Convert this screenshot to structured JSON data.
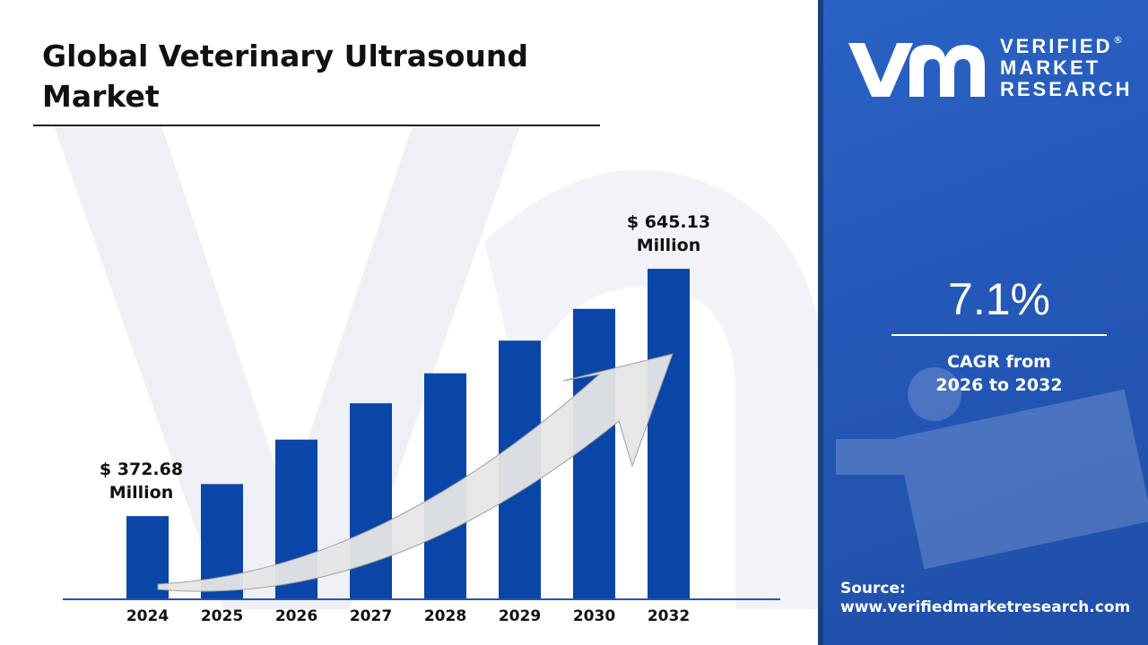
{
  "header": {
    "title": "Global Veterinary Ultrasound Market"
  },
  "brand": {
    "logo_mark": "vmr",
    "logo_text": [
      "VERIFIED",
      "MARKET",
      "RESEARCH"
    ],
    "registered": "®"
  },
  "side_panel": {
    "cagr_value": "7.1%",
    "cagr_label_line1": "CAGR from",
    "cagr_label_line2": "2026 to 2032",
    "source_label": "Source:",
    "source_url": "www.verifiedmarketresearch.com"
  },
  "colors": {
    "bar": "#0a45a8",
    "panel": "#2458b8",
    "arrow": "#e6e6e6"
  },
  "chart_data": {
    "type": "bar",
    "title": "Global Veterinary Ultrasound Market",
    "categories": [
      "2024",
      "2025",
      "2026",
      "2027",
      "2028",
      "2029",
      "2030",
      "2032"
    ],
    "values": [
      372.68,
      408,
      457,
      497,
      530,
      566,
      601,
      645.13
    ],
    "unit": "USD Million",
    "ylim": [
      282,
      660
    ],
    "grid": false,
    "legend": "none",
    "annotations": [
      {
        "category": "2024",
        "line1": "$ 372.68",
        "line2": "Million"
      },
      {
        "category": "2032",
        "line1": "$ 645.13",
        "line2": "Million"
      }
    ],
    "trend_arrow": true
  }
}
